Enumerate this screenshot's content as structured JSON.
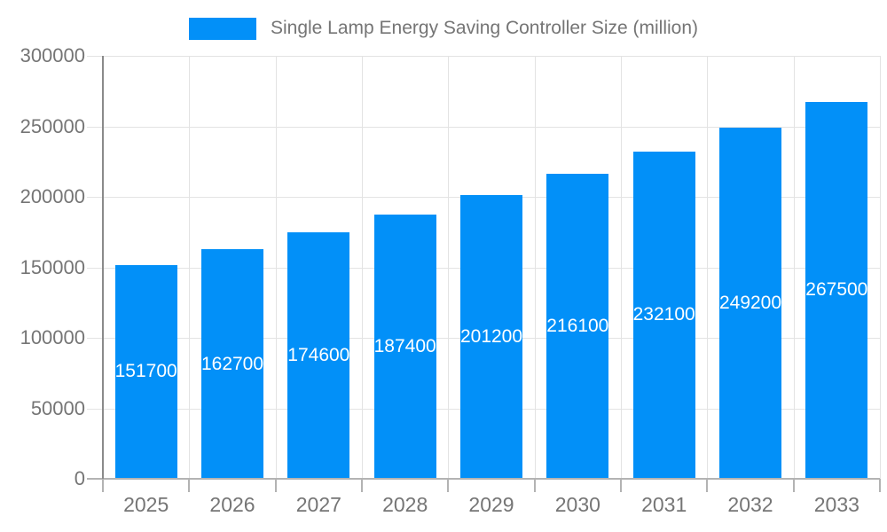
{
  "legend": {
    "label": "Single Lamp Energy Saving Controller Size (million)"
  },
  "colors": {
    "bar": "#0290f8",
    "axis_text": "#757575",
    "grid": "#e3e3e3",
    "y_axis_line": "#8a8a8a",
    "x_axis_line": "#b3b3b3",
    "bar_label": "#ffffff"
  },
  "chart_data": {
    "type": "bar",
    "title": "",
    "categories": [
      "2025",
      "2026",
      "2027",
      "2028",
      "2029",
      "2030",
      "2031",
      "2032",
      "2033"
    ],
    "series": [
      {
        "name": "Single Lamp Energy Saving Controller Size (million)",
        "values": [
          151700,
          162700,
          174600,
          187400,
          201200,
          216100,
          232100,
          249200,
          267500
        ]
      }
    ],
    "bar_labels": [
      "151700",
      "162700",
      "174600",
      "187400",
      "201200",
      "216100",
      "232100",
      "249200",
      "267500"
    ],
    "xlabel": "",
    "ylabel": "",
    "ylim": [
      0,
      300000
    ],
    "yticks": [
      0,
      50000,
      100000,
      150000,
      200000,
      250000,
      300000
    ],
    "grid": "on",
    "legend_position": "top"
  }
}
